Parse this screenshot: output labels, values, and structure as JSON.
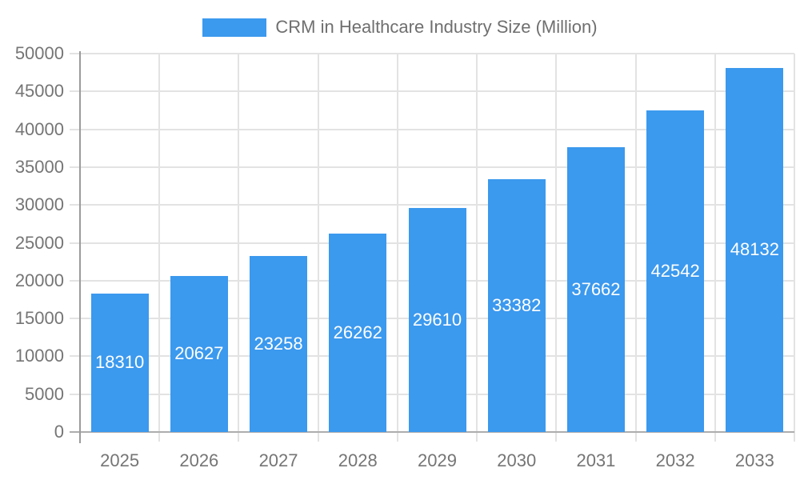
{
  "legend": {
    "label": "CRM in Healthcare Industry Size (Million)"
  },
  "chart_data": {
    "type": "bar",
    "title": "CRM in Healthcare Industry Size (Million)",
    "series_name": "CRM in Healthcare Industry Size (Million)",
    "categories": [
      "2025",
      "2026",
      "2027",
      "2028",
      "2029",
      "2030",
      "2031",
      "2032",
      "2033"
    ],
    "values": [
      18310,
      20627,
      23258,
      26262,
      29610,
      33382,
      37662,
      42542,
      48132
    ],
    "xlabel": "",
    "ylabel": "",
    "ylim": [
      0,
      50000
    ],
    "yticks": [
      0,
      5000,
      10000,
      15000,
      20000,
      25000,
      30000,
      35000,
      40000,
      45000,
      50000
    ],
    "grid": true,
    "legend_position": "top",
    "value_labels": "inside-center"
  },
  "colors": {
    "bar": "#3B99EE",
    "bar_label": "#FFFFFF",
    "grid": "#E3E3E3",
    "axis_line": "#9B9B9B",
    "baseline": "#ADADAD",
    "text": "#757575",
    "background": "#FFFFFF"
  }
}
